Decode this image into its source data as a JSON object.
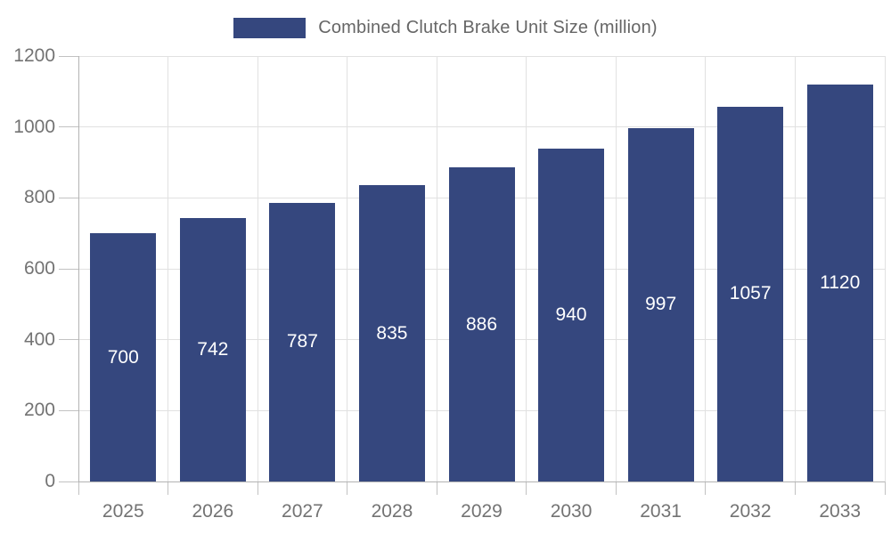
{
  "chart_data": {
    "type": "bar",
    "title": "",
    "legend": "Combined Clutch Brake Unit Size (million)",
    "legend_position": "top",
    "categories": [
      "2025",
      "2026",
      "2027",
      "2028",
      "2029",
      "2030",
      "2031",
      "2032",
      "2033"
    ],
    "values": [
      700,
      742,
      787,
      835,
      886,
      940,
      997,
      1057,
      1120
    ],
    "xlabel": "",
    "ylabel": "",
    "ylim": [
      0,
      1200
    ],
    "yticks": [
      0,
      200,
      400,
      600,
      800,
      1000,
      1200
    ],
    "grid": true,
    "value_labels": "inside-center",
    "colors": {
      "bar": "#35477E",
      "grid": "#e1e1e1",
      "axis": "#b3b3b3",
      "tick": "#c2c2c2",
      "axis_text": "#737373",
      "legend_text": "#666666",
      "value_text": "#ffffff",
      "background": "#ffffff"
    }
  }
}
